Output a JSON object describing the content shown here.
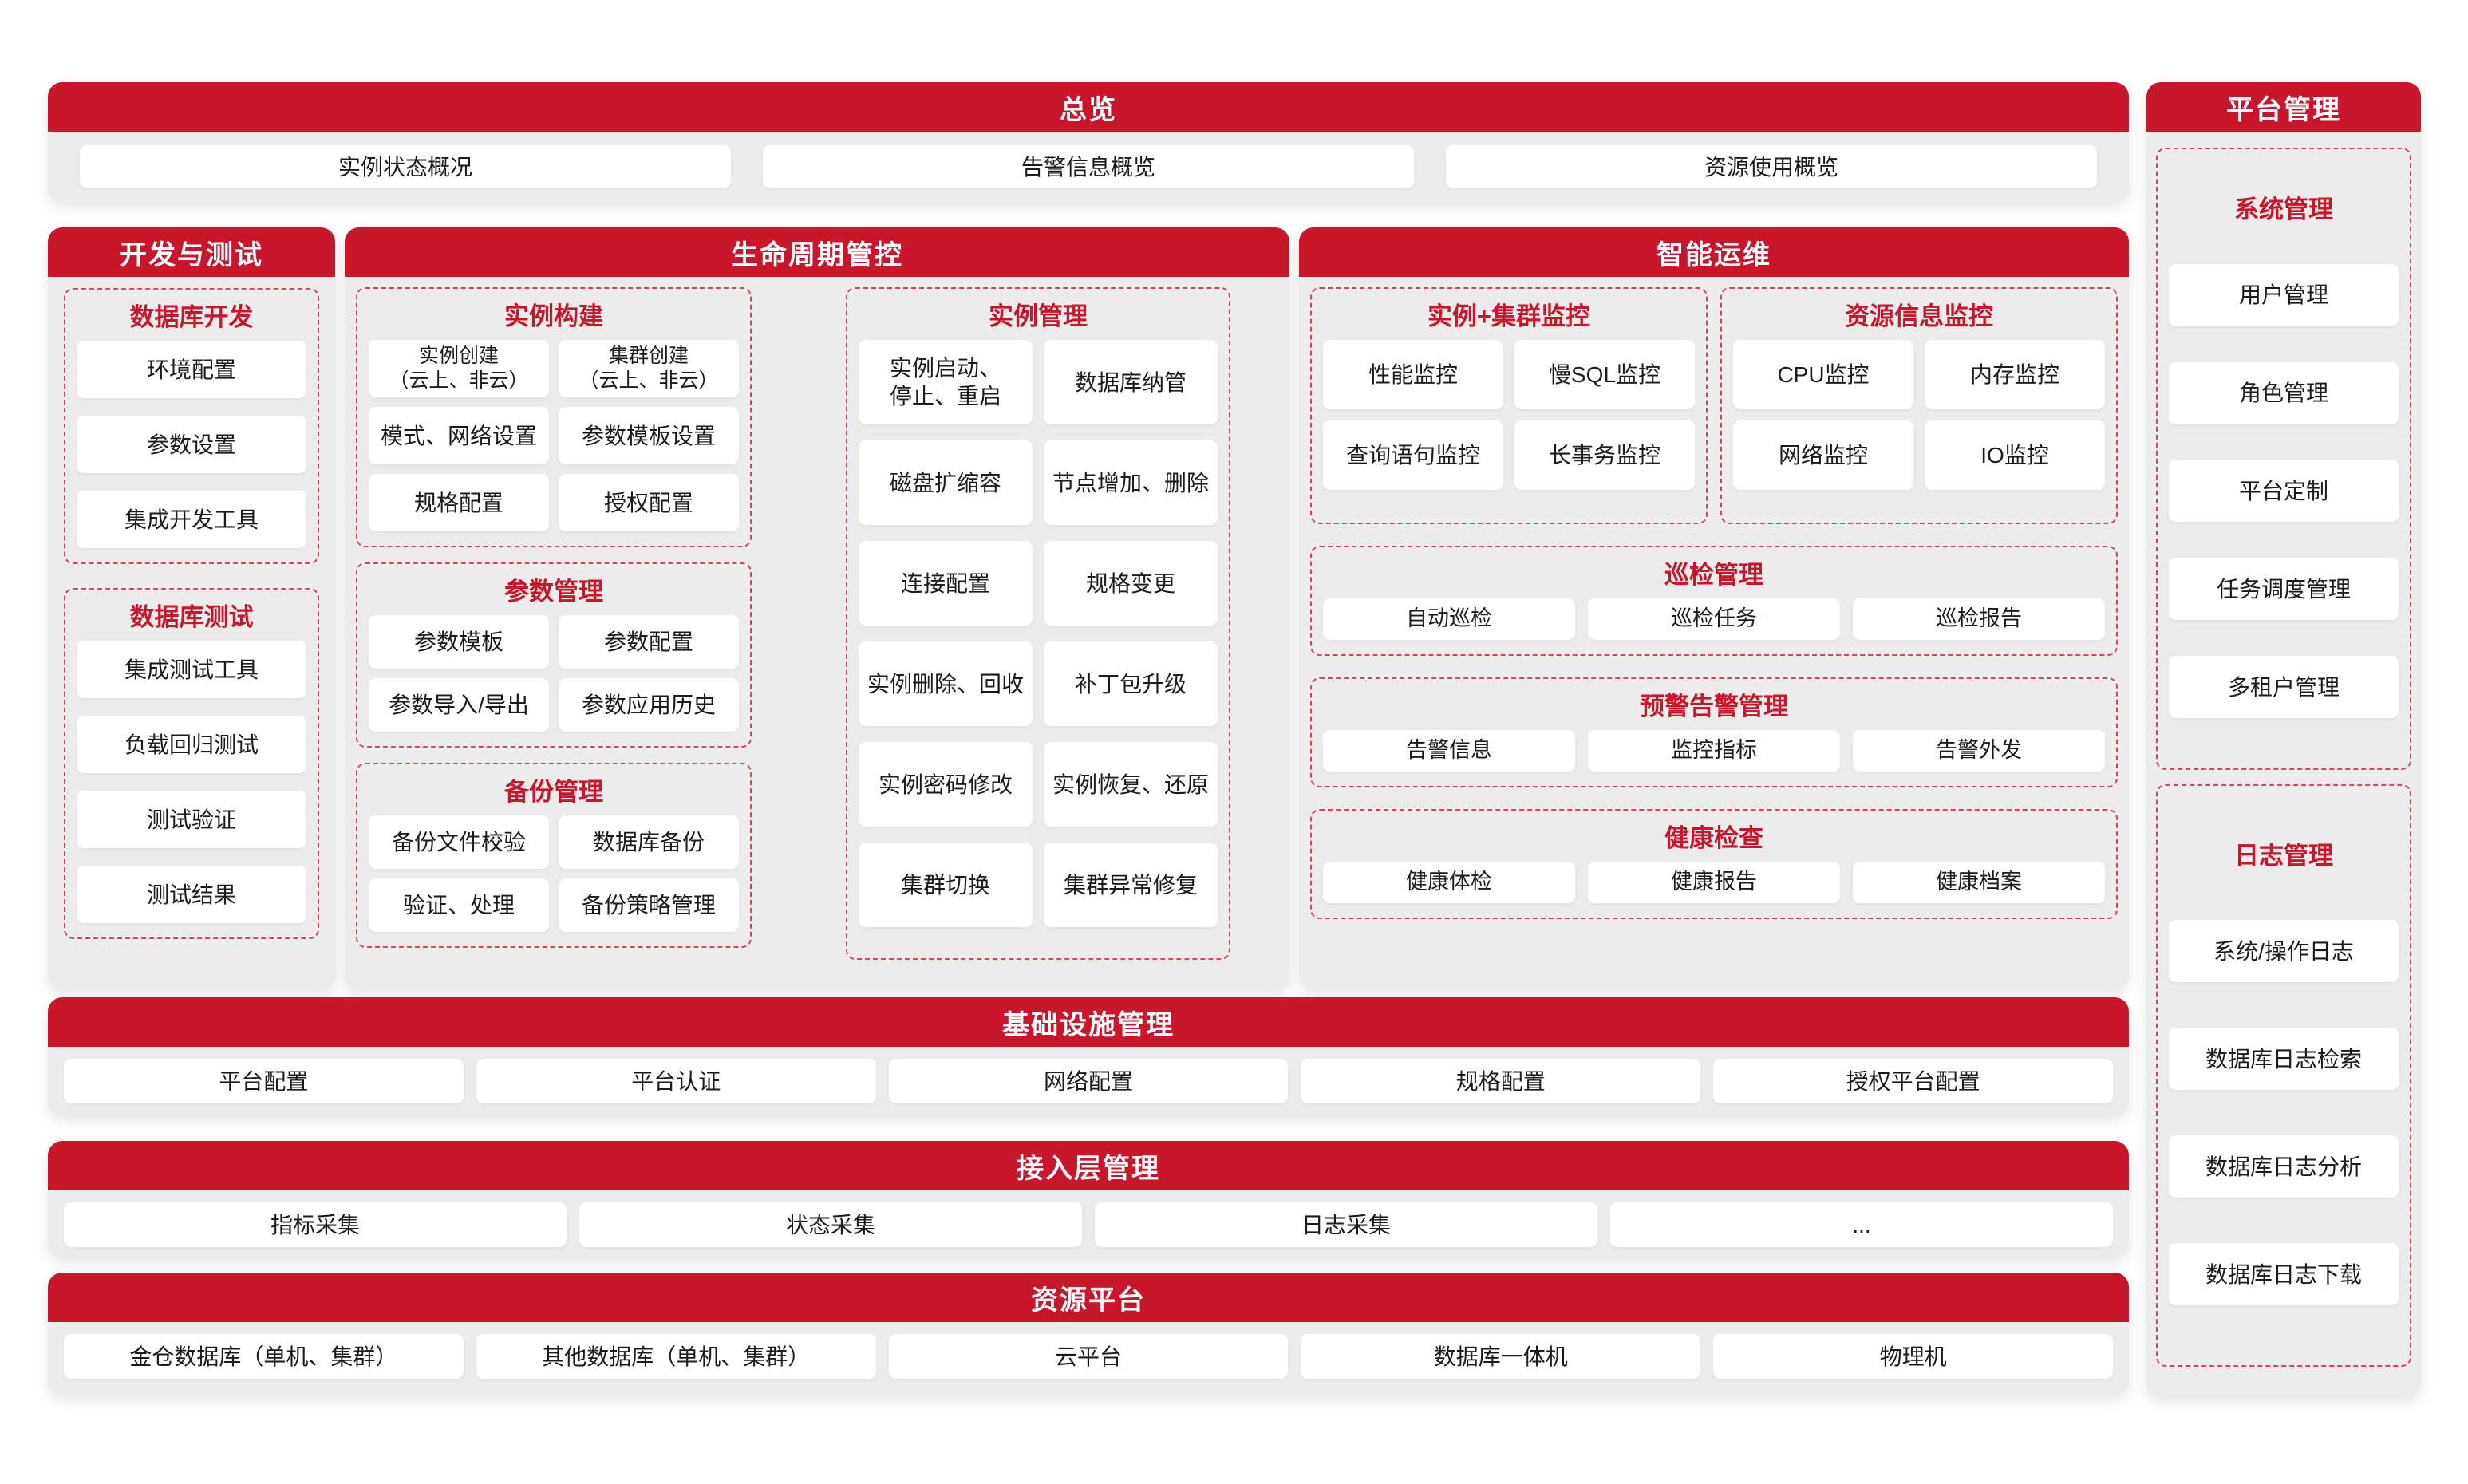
{
  "palette": {
    "red": "#C8172B",
    "dashed": "#D04A52",
    "panel_bg": "#ECECED",
    "box_bg": "#FFFFFF",
    "text": "#1B1B1B"
  },
  "overview": {
    "title": "总览",
    "items": [
      "实例状态概况",
      "告警信息概览",
      "资源使用概览"
    ]
  },
  "dev_test": {
    "title": "开发与测试",
    "sections": [
      {
        "title": "数据库开发",
        "items": [
          "环境配置",
          "参数设置",
          "集成开发工具"
        ]
      },
      {
        "title": "数据库测试",
        "items": [
          "集成测试工具",
          "负载回归测试",
          "测试验证",
          "测试结果"
        ]
      }
    ]
  },
  "lifecycle": {
    "title": "生命周期管控",
    "left_sections": [
      {
        "title": "实例构建",
        "items": [
          "实例创建\n（云上、非云）",
          "集群创建\n（云上、非云）",
          "模式、网络设置",
          "参数模板设置",
          "规格配置",
          "授权配置"
        ]
      },
      {
        "title": "参数管理",
        "items": [
          "参数模板",
          "参数配置",
          "参数导入/导出",
          "参数应用历史"
        ]
      },
      {
        "title": "备份管理",
        "items": [
          "备份文件校验",
          "数据库备份",
          "验证、处理",
          "备份策略管理"
        ]
      }
    ],
    "instance_mgmt": {
      "title": "实例管理",
      "items": [
        "实例启动、\n停止、重启",
        "数据库纳管",
        "磁盘扩缩容",
        "节点增加、删除",
        "连接配置",
        "规格变更",
        "实例删除、回收",
        "补丁包升级",
        "实例密码修改",
        "实例恢复、还原",
        "集群切换",
        "集群异常修复"
      ]
    }
  },
  "aiops": {
    "title": "智能运维",
    "monitor_sections": [
      {
        "title": "实例+集群监控",
        "items": [
          "性能监控",
          "慢SQL监控",
          "查询语句监控",
          "长事务监控"
        ]
      },
      {
        "title": "资源信息监控",
        "items": [
          "CPU监控",
          "内存监控",
          "网络监控",
          "IO监控"
        ]
      }
    ],
    "row_sections": [
      {
        "title": "巡检管理",
        "items": [
          "自动巡检",
          "巡检任务",
          "巡检报告"
        ]
      },
      {
        "title": "预警告警管理",
        "items": [
          "告警信息",
          "监控指标",
          "告警外发"
        ]
      },
      {
        "title": "健康检查",
        "items": [
          "健康体检",
          "健康报告",
          "健康档案"
        ]
      }
    ]
  },
  "infra": {
    "title": "基础设施管理",
    "items": [
      "平台配置",
      "平台认证",
      "网络配置",
      "规格配置",
      "授权平台配置"
    ]
  },
  "access": {
    "title": "接入层管理",
    "items": [
      "指标采集",
      "状态采集",
      "日志采集",
      "..."
    ]
  },
  "resource": {
    "title": "资源平台",
    "items": [
      "金仓数据库（单机、集群）",
      "其他数据库（单机、集群）",
      "云平台",
      "数据库一体机",
      "物理机"
    ]
  },
  "platform": {
    "title": "平台管理",
    "sections": [
      {
        "title": "系统管理",
        "items": [
          "用户管理",
          "角色管理",
          "平台定制",
          "任务调度管理",
          "多租户管理"
        ]
      },
      {
        "title": "日志管理",
        "items": [
          "系统/操作日志",
          "数据库日志检索",
          "数据库日志分析",
          "数据库日志下载"
        ]
      }
    ]
  }
}
